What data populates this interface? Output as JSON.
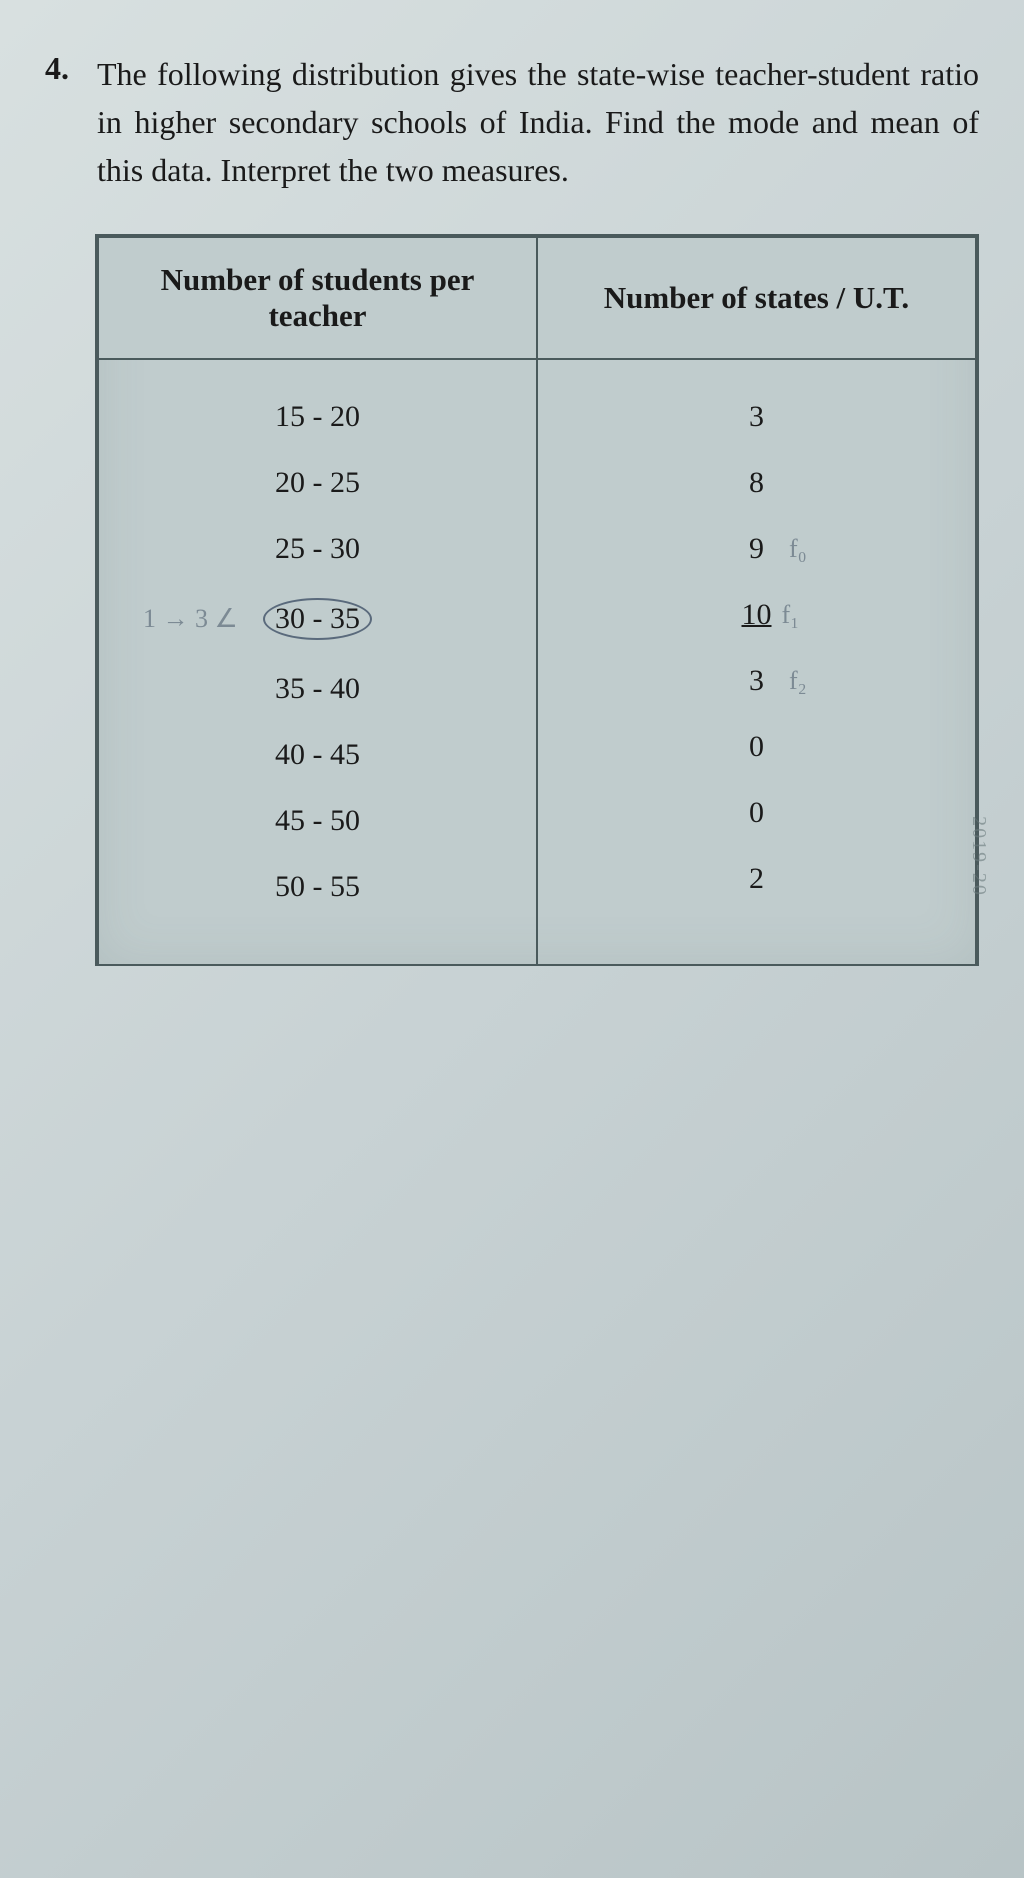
{
  "question": {
    "number": "4.",
    "text": "The following distribution gives the state-wise teacher-student ratio in higher secondary schools of India. Find the mode and mean of this data. Interpret the two measures."
  },
  "table": {
    "headers": {
      "col1": "Number of students per teacher",
      "col2": "Number of states / U.T."
    },
    "rows": [
      {
        "range": "15 - 20",
        "value": "3"
      },
      {
        "range": "20 - 25",
        "value": "8"
      },
      {
        "range": "25 - 30",
        "value": "9"
      },
      {
        "range": "30 - 35",
        "value": "10"
      },
      {
        "range": "35 - 40",
        "value": "3"
      },
      {
        "range": "40 - 45",
        "value": "0"
      },
      {
        "range": "45 - 50",
        "value": "0"
      },
      {
        "range": "50 - 55",
        "value": "2"
      }
    ]
  },
  "annotations": {
    "arrow_text": "1 → 3 ∠",
    "f0": "f₀",
    "f1": "f₁",
    "f2": "f₂"
  },
  "side_text": "2019-20"
}
